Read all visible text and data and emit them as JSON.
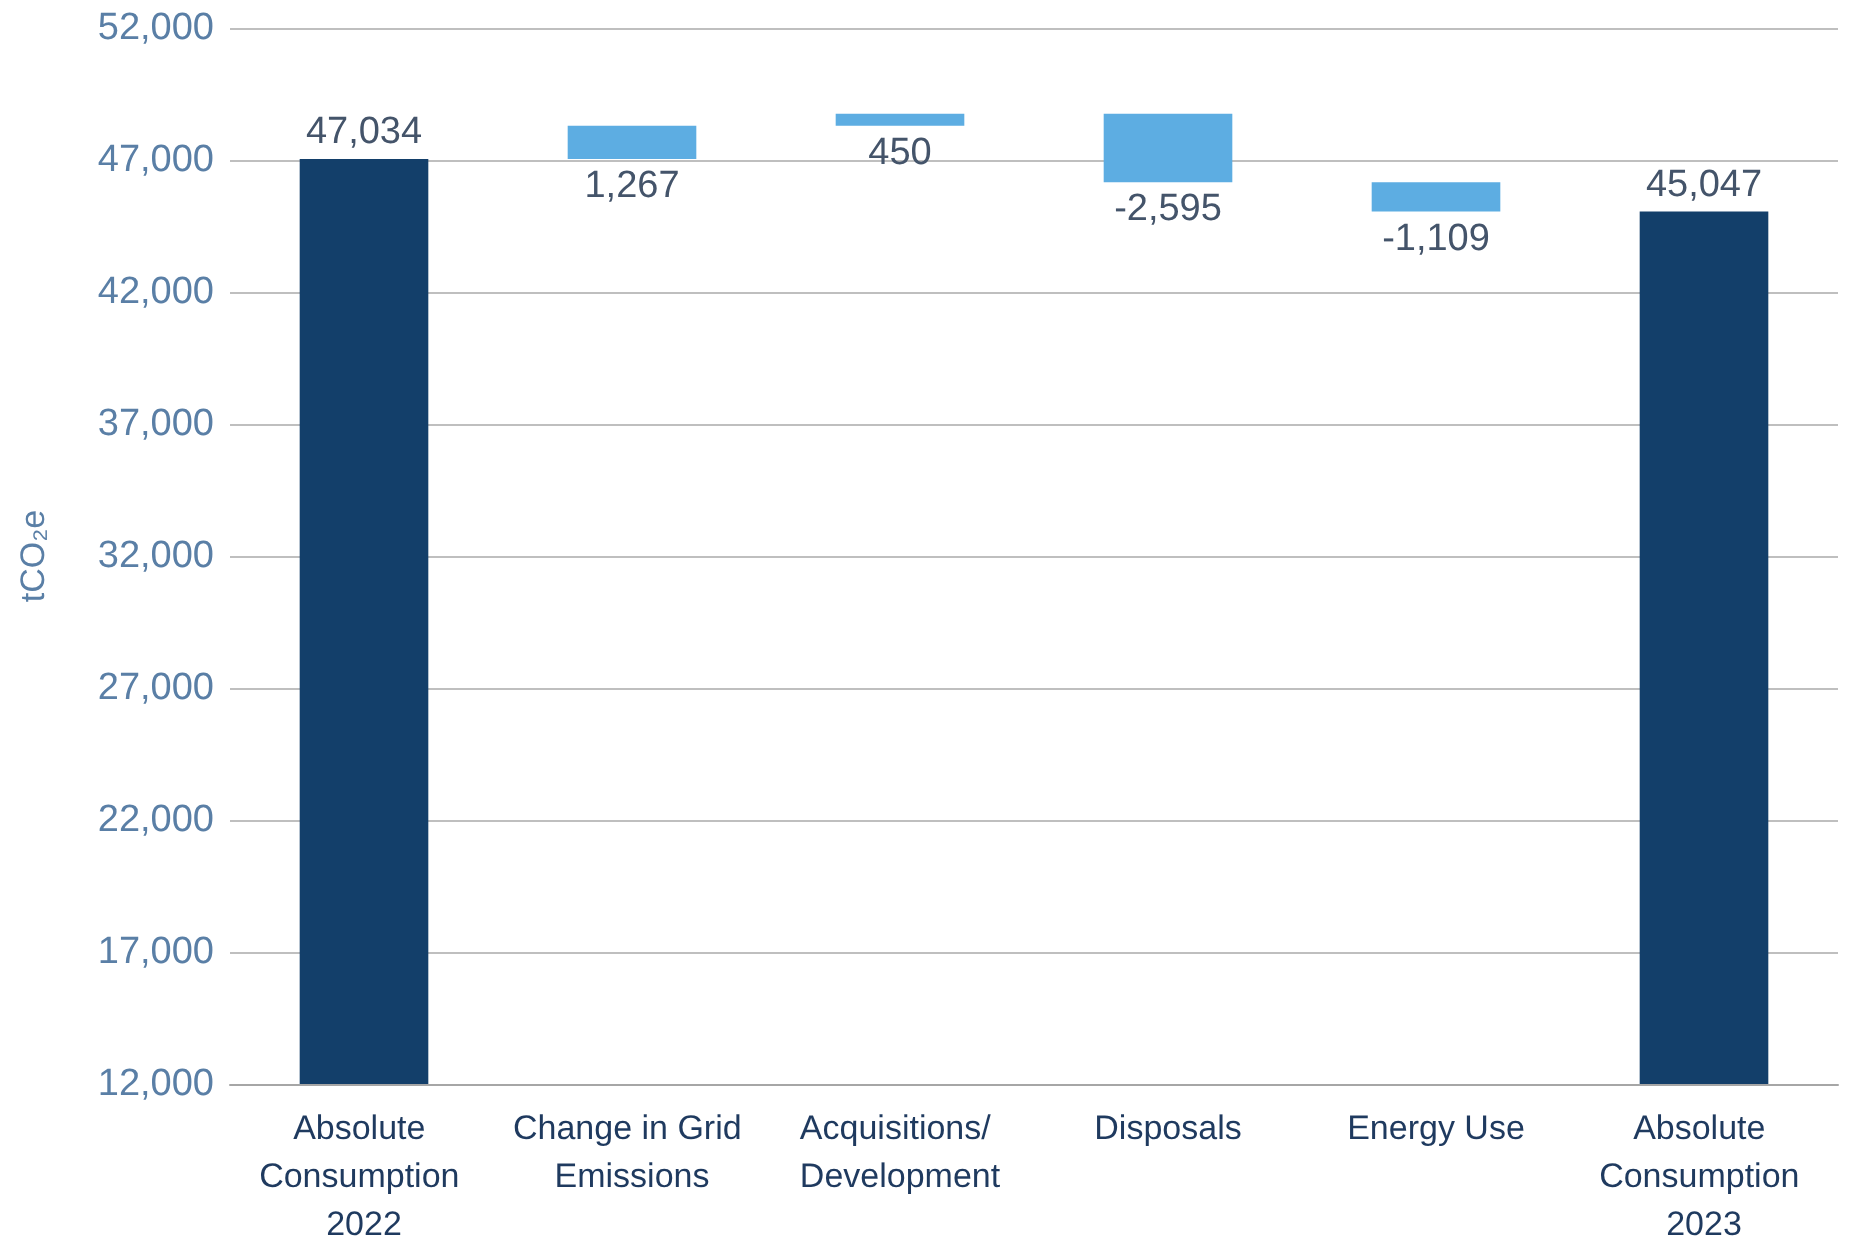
{
  "chart_data": {
    "type": "bar",
    "ylabel": "tCO₂e",
    "categories": [
      "Absolute Consumption 2022",
      "Change in Grid Emissions",
      "Acquisitions/ Development",
      "Disposals",
      "Energy Use",
      "Absolute Consumption 2023"
    ],
    "values": [
      47034,
      1267,
      450,
      -2595,
      -1109,
      45047
    ],
    "base": [
      null,
      47034,
      48301,
      48751,
      46156,
      null
    ],
    "colors": [
      "#133f6a",
      "#5dade2",
      "#5dade2",
      "#5dade2",
      "#5dade2",
      "#133f6a"
    ],
    "value_labels": [
      "47,034",
      "1,267",
      "450",
      "-2,595",
      "-1,109",
      "45,047"
    ],
    "ylim": [
      12000,
      52000
    ],
    "yticks": [
      {
        "value": 12000,
        "label": "12,000"
      },
      {
        "value": 17000,
        "label": "17,000"
      },
      {
        "value": 22000,
        "label": "22,000"
      },
      {
        "value": 27000,
        "label": "27,000"
      },
      {
        "value": 32000,
        "label": "32,000"
      },
      {
        "value": 37000,
        "label": "37,000"
      },
      {
        "value": 42000,
        "label": "42,000"
      },
      {
        "value": 47000,
        "label": "47,000"
      },
      {
        "value": 52000,
        "label": "52,000"
      }
    ],
    "grid": "y"
  }
}
